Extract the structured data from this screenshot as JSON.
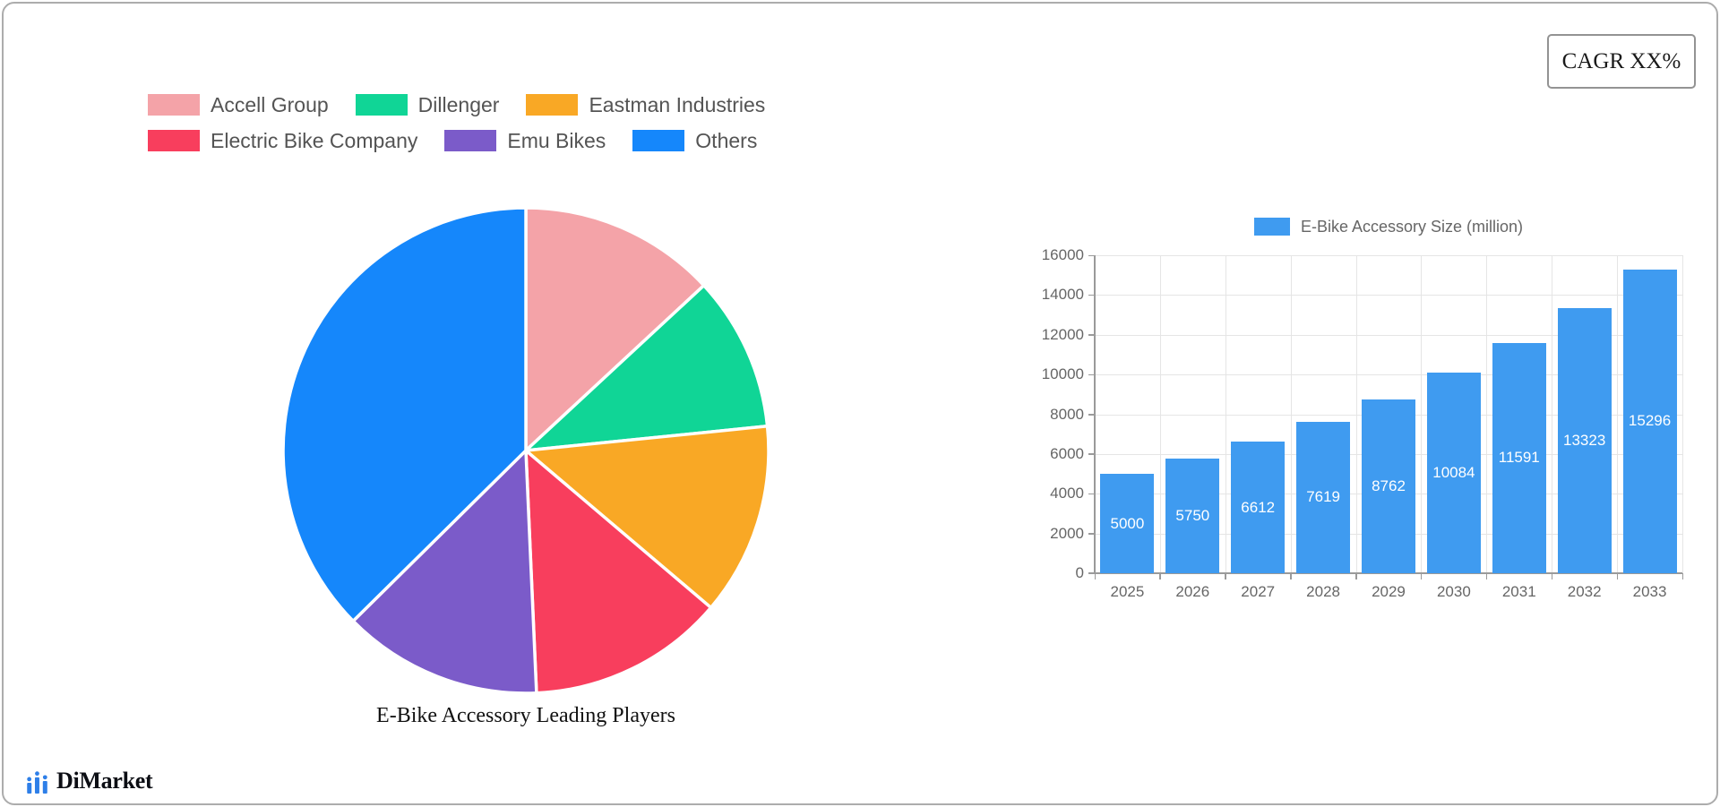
{
  "cagr": {
    "label": "CAGR XX%"
  },
  "logo": {
    "text": "DiMarket",
    "icon_color": "#2e7fe8"
  },
  "chart_data": [
    {
      "type": "pie",
      "title": "E-Bike Accessory Leading Players",
      "labels": [
        "Accell Group",
        "Dillenger",
        "Eastman Industries",
        "Electric Bike Company",
        "Emu Bikes",
        "Others"
      ],
      "values": [
        13.1,
        10.3,
        12.8,
        13.1,
        13.3,
        37.4
      ],
      "values_are_estimates": true,
      "colors": [
        "#f4a3a8",
        "#10d596",
        "#f9a825",
        "#f83e5d",
        "#7b5bc9",
        "#1587fb"
      ],
      "start_angle_deg": 0,
      "direction": "clockwise",
      "legend_position": "top",
      "legend_row_break": 3,
      "slice_border_color": "#ffffff"
    },
    {
      "type": "bar",
      "legend_label": "E-Bike Accessory Size (million)",
      "categories": [
        "2025",
        "2026",
        "2027",
        "2028",
        "2029",
        "2030",
        "2031",
        "2032",
        "2033"
      ],
      "values": [
        5000,
        5750,
        6612,
        7619,
        8762,
        10084,
        11591,
        13323,
        15296
      ],
      "bar_color": "#3f9bf0",
      "ylim": [
        0,
        16000
      ],
      "y_ticks": [
        0,
        2000,
        4000,
        6000,
        8000,
        10000,
        12000,
        14000,
        16000
      ],
      "grid": true,
      "value_label_style": "white-centered-inside-bar",
      "legend_position": "top"
    }
  ]
}
